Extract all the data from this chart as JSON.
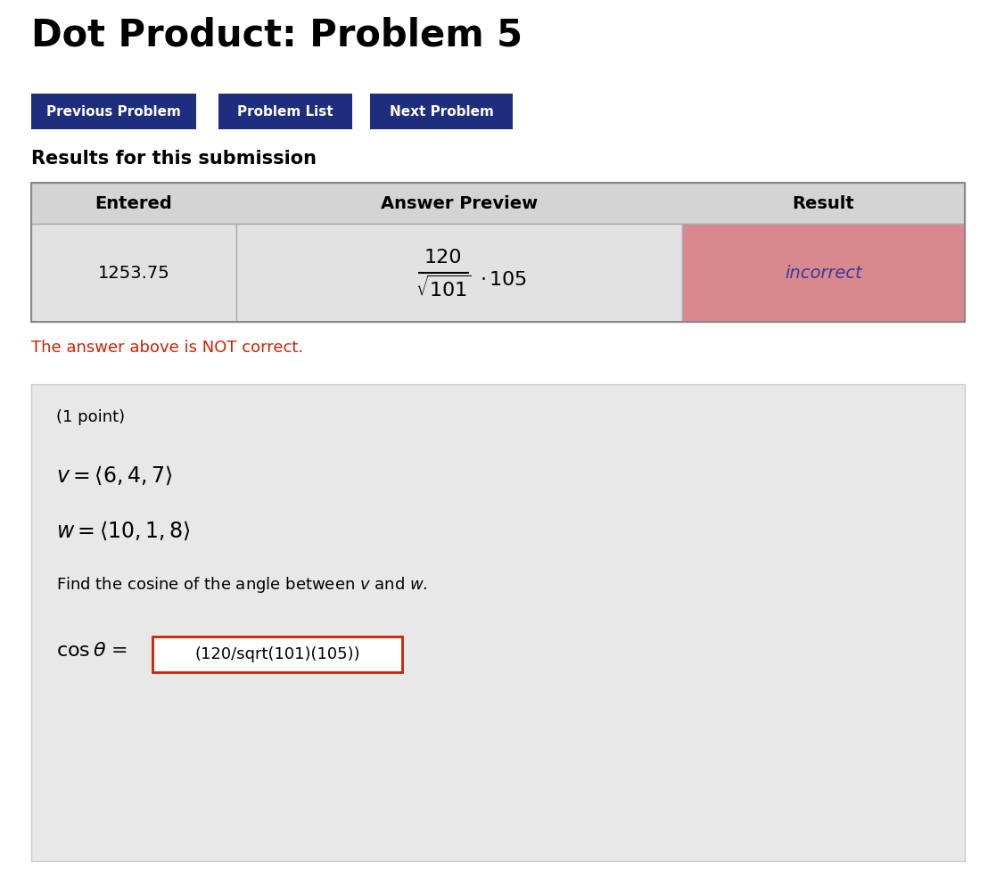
{
  "title": "Dot Product: Problem 5",
  "title_fontsize": 30,
  "bg_color": "#ffffff",
  "buttons": [
    {
      "label": "Previous Problem"
    },
    {
      "label": "Problem List"
    },
    {
      "label": "Next Problem"
    }
  ],
  "button_color": "#1e2d7d",
  "button_text_color": "#ffffff",
  "button_fontsize": 11,
  "section_header": "Results for this submission",
  "section_header_fontsize": 15,
  "table_header_bg": "#d4d4d4",
  "table_row_bg": "#e2e2e2",
  "table_incorrect_bg": "#d9888e",
  "table_border_color": "#aaaaaa",
  "table_headers": [
    "Entered",
    "Answer Preview",
    "Result"
  ],
  "table_entered": "1253.75",
  "table_result": "incorrect",
  "table_result_color": "#3a3a9a",
  "not_correct_text": "The answer above is NOT correct.",
  "not_correct_color": "#cc2200",
  "problem_box_bg": "#e8e8e8",
  "problem_box_border": "#cccccc",
  "point_text": "(1 point)",
  "find_text": "Find the cosine of the angle between ",
  "cos_label": "cos θ =",
  "answer_box_text": "(120/sqrt(101)(105))",
  "answer_box_border": "#cc2200",
  "answer_box_bg": "#ffffff"
}
